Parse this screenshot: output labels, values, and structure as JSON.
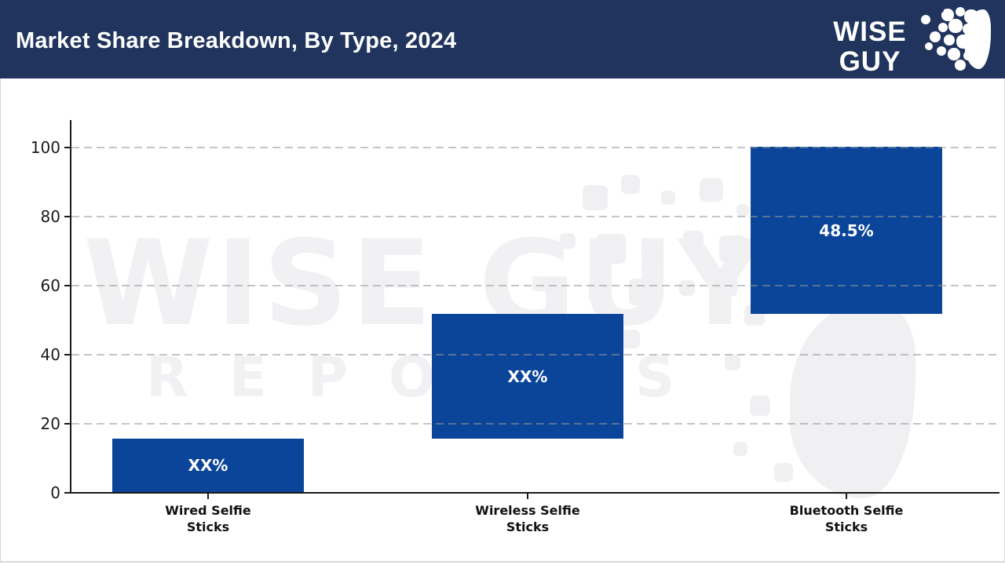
{
  "header": {
    "title": "Market Share Breakdown, By Type, 2024",
    "background_color": "#20345e",
    "logo": {
      "line1": "WISE GUY",
      "line2": "REPORTS"
    }
  },
  "watermark": {
    "line1": "WISE GUY",
    "line2": "REPORTS"
  },
  "chart_data": {
    "type": "bar",
    "subtype": "floating-waterfall",
    "title": "Market Share Breakdown, By Type, 2024",
    "categories": [
      [
        "Wired Selfie",
        "Sticks"
      ],
      [
        "Wireless Selfie",
        "Sticks"
      ],
      [
        "Bluetooth Selfie",
        "Sticks"
      ]
    ],
    "series": [
      {
        "name": "Market Share (%)",
        "segments": [
          {
            "category": "Wired Selfie Sticks",
            "start": 0,
            "end": 15.5,
            "value": 15.5,
            "label": "XX%"
          },
          {
            "category": "Wireless Selfie Sticks",
            "start": 15.5,
            "end": 51.5,
            "value": 36,
            "label": "XX%"
          },
          {
            "category": "Bluetooth Selfie Sticks",
            "start": 51.5,
            "end": 100,
            "value": 48.5,
            "label": "48.5%"
          }
        ]
      }
    ],
    "ylim": [
      0,
      100
    ],
    "yticks": [
      0,
      20,
      40,
      60,
      80,
      100
    ],
    "xlabel": "",
    "ylabel": "",
    "grid": "horizontal-dashed",
    "legend": "none",
    "bar_color": "#0a4599",
    "bar_label_color": "#ffffff",
    "axis_color": "#1a1a1a"
  }
}
